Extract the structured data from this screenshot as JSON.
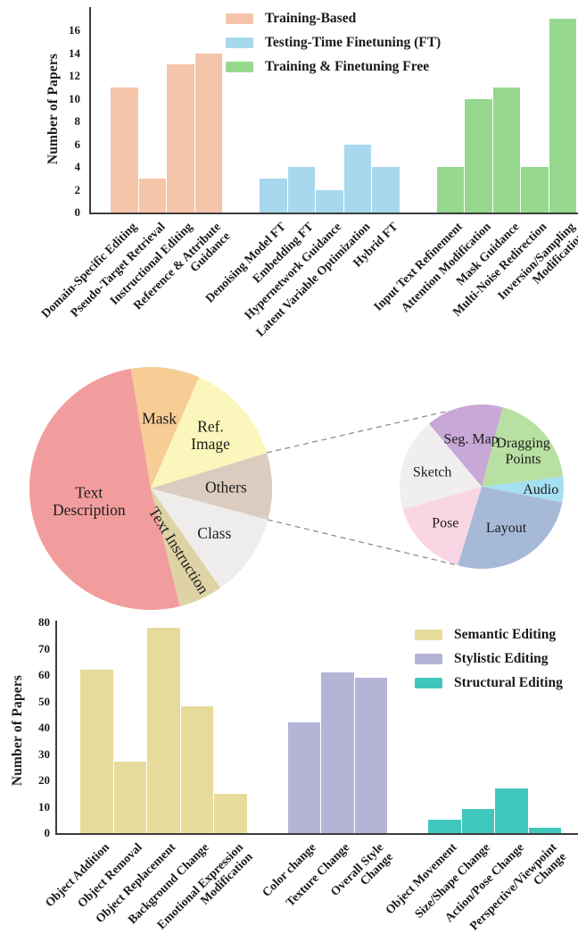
{
  "figure": {
    "background": "#ffffff"
  },
  "connector": {
    "style": "dashed",
    "color": "#8f8f8f",
    "from_slice": "Others",
    "to_chart": "others-breakdown-pie"
  },
  "chart_data": [
    {
      "id": "editing-methods-by-training-paradigm",
      "type": "bar",
      "title": "",
      "xlabel": "",
      "ylabel": "Number of Papers",
      "ylim": [
        0,
        17
      ],
      "yticks": [
        0,
        2,
        4,
        6,
        8,
        10,
        12,
        14,
        16
      ],
      "grid": false,
      "legend_position": "upper-center-left",
      "legend": [
        {
          "label": "Training-Based",
          "color": "#f5c5a9"
        },
        {
          "label": "Testing-Time Finetuning (FT)",
          "color": "#a8d8ee"
        },
        {
          "label": "Training & Finetuning Free",
          "color": "#95d88e"
        }
      ],
      "groups": [
        {
          "name": "Training-Based",
          "color": "#f5c5a9",
          "categories": [
            "Domain-Specific Editing",
            "Pseudo-Target Retrieval",
            "Instructional Editing",
            "Reference & Attribute\nGuidance"
          ],
          "values": [
            11,
            3,
            13,
            14
          ]
        },
        {
          "name": "Testing-Time Finetuning (FT)",
          "color": "#a8d8ee",
          "categories": [
            "Denoising Model FT",
            "Embedding FT",
            "Hypernetwork Guidance",
            "Latent Variable Optimization",
            "Hybrid FT"
          ],
          "values": [
            3,
            4,
            2,
            6,
            4
          ]
        },
        {
          "name": "Training & Finetuning Free",
          "color": "#95d88e",
          "categories": [
            "Input Text Refinement",
            "Attention Modification",
            "Mask Guidance",
            "Multi-Noise Redirection",
            "Inversion/Sampling\nModification"
          ],
          "values": [
            4,
            10,
            11,
            4,
            17
          ]
        }
      ]
    },
    {
      "id": "guidance-modality-pie",
      "type": "pie",
      "title": "",
      "start_deg": 350.5,
      "slices": [
        {
          "label": "Mask",
          "span_deg": 33,
          "percent_est": 9.2,
          "color": "#f8cc95",
          "label_r": 0.58
        },
        {
          "label": "Ref.\nImage",
          "span_deg": 49.5,
          "percent_est": 13.8,
          "color": "#fbf7bc",
          "label_r": 0.66
        },
        {
          "label": "Others",
          "span_deg": 32,
          "percent_est": 8.9,
          "color": "#dbccbf",
          "label_r": 0.62
        },
        {
          "label": "Class",
          "span_deg": 40,
          "percent_est": 11.1,
          "color": "#eeedeb",
          "label_r": 0.64
        },
        {
          "label": "Text Instruction",
          "span_deg": 21,
          "percent_est": 5.8,
          "color": "#dfd3a6",
          "label_r": 0.56,
          "label_rotate": 58
        },
        {
          "label": "Text\nDescription",
          "span_deg": 184.5,
          "percent_est": 51.2,
          "color": "#f29d9d",
          "label_r": 0.52
        }
      ]
    },
    {
      "id": "others-breakdown-pie",
      "type": "pie",
      "title": "",
      "start_deg": 320,
      "slices": [
        {
          "label": "Seg. Map",
          "span_deg": 55,
          "percent_est": 15.3,
          "color": "#c8a8d6",
          "label_r": 0.6
        },
        {
          "label": "Dragging\nPoints",
          "span_deg": 68,
          "percent_est": 18.9,
          "color": "#b8e0a3",
          "label_r": 0.67
        },
        {
          "label": "Audio",
          "span_deg": 18,
          "percent_est": 5.0,
          "color": "#a5dff2",
          "label_r": 0.72
        },
        {
          "label": "Layout",
          "span_deg": 96,
          "percent_est": 26.7,
          "color": "#a6bad8",
          "label_r": 0.58
        },
        {
          "label": "Pose",
          "span_deg": 57,
          "percent_est": 15.8,
          "color": "#fad6e5",
          "label_r": 0.62
        },
        {
          "label": "Sketch",
          "span_deg": 66,
          "percent_est": 18.3,
          "color": "#f0eeee",
          "label_r": 0.63
        }
      ]
    },
    {
      "id": "editing-tasks-by-category",
      "type": "bar",
      "title": "",
      "xlabel": "",
      "ylabel": "Number of Papers",
      "ylim": [
        0,
        80
      ],
      "yticks": [
        0,
        10,
        20,
        30,
        40,
        50,
        60,
        70,
        80
      ],
      "grid": false,
      "legend_position": "upper-right",
      "legend": [
        {
          "label": "Semantic Editing",
          "color": "#e7db9b"
        },
        {
          "label": "Stylistic Editing",
          "color": "#b6b4d6"
        },
        {
          "label": "Structural Editing",
          "color": "#3fc7bd"
        }
      ],
      "groups": [
        {
          "name": "Semantic Editing",
          "color": "#e7db9b",
          "categories": [
            "Object Addition",
            "Object Removal",
            "Object Replacement",
            "Background Change",
            "Emotional Expression\nModification"
          ],
          "values": [
            62,
            27,
            78,
            48,
            15
          ]
        },
        {
          "name": "Stylistic Editing",
          "color": "#b6b4d6",
          "categories": [
            "Color change",
            "Texture Change",
            "Overall Style\nChange"
          ],
          "values": [
            42,
            61,
            59
          ]
        },
        {
          "name": "Structural Editing",
          "color": "#3fc7bd",
          "categories": [
            "Object Movement",
            "Size/Shape Change",
            "Action/Pose Change",
            "Perspective/Viewpoint\nChange"
          ],
          "values": [
            5,
            9,
            17,
            2
          ]
        }
      ]
    }
  ]
}
